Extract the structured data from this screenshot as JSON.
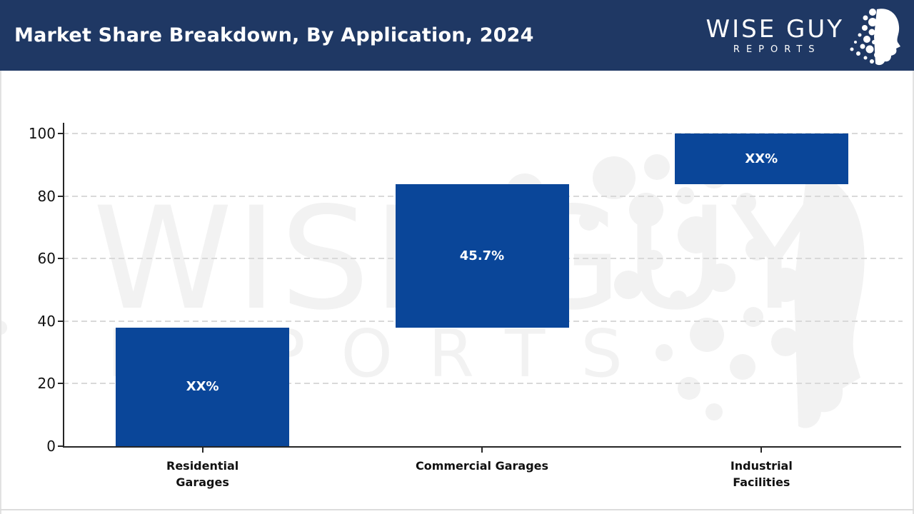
{
  "header": {
    "title": "Market Share Breakdown, By Application, 2024",
    "logo": {
      "line1": "WISE GUY",
      "line2": "REPORTS"
    }
  },
  "watermark": {
    "line1": "WISE GUY",
    "line2": "REPORTS"
  },
  "chart_data": {
    "type": "bar",
    "subtype": "waterfall-stacked-percentage",
    "title": "Market Share Breakdown, By Application, 2024",
    "categories": [
      "Residential\nGarages",
      "Commercial Garages",
      "Industrial\nFacilities"
    ],
    "segments": [
      {
        "from": 0,
        "to": 38.0
      },
      {
        "from": 38.0,
        "to": 83.7
      },
      {
        "from": 83.7,
        "to": 100.0
      }
    ],
    "displayed_spans": [
      38.0,
      45.7,
      16.3
    ],
    "bar_labels": [
      "XX%",
      "45.7%",
      "XX%"
    ],
    "xlabel": "",
    "ylabel": "",
    "ylim": [
      0,
      100
    ],
    "yticks": [
      0,
      20,
      40,
      60,
      80,
      100
    ],
    "grid": "horizontal-dashed",
    "legend": "none",
    "bar_color": "#0a4699",
    "header_color": "#1f3864",
    "gridline_color": "#d9d9d9",
    "axis_color": "#262626",
    "watermark_color": "#f2f2f2"
  }
}
